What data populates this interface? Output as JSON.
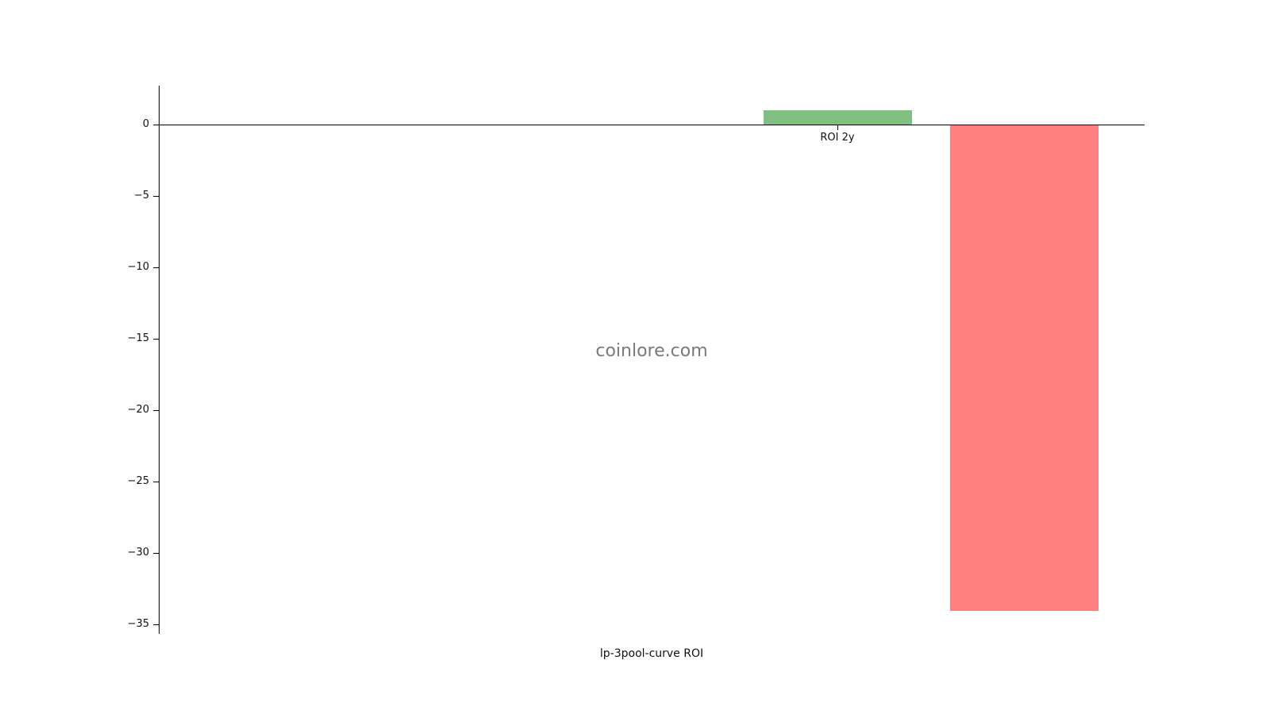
{
  "chart_data": {
    "type": "bar",
    "title": "lp-3pool-curve ROI",
    "watermark": "coinlore.com",
    "bars": [
      {
        "label": "ROI 2y",
        "show_label": true,
        "value": 1.0,
        "color": "#80bf80"
      },
      {
        "label": "",
        "show_label": false,
        "value": -34.0,
        "color": "#ff8080"
      }
    ],
    "yticks": [
      {
        "label": "0",
        "value": 0
      },
      {
        "label": "−5",
        "value": -5
      },
      {
        "label": "−10",
        "value": -10
      },
      {
        "label": "−15",
        "value": -15
      },
      {
        "label": "−20",
        "value": -20
      },
      {
        "label": "−25",
        "value": -25
      },
      {
        "label": "−30",
        "value": -30
      },
      {
        "label": "−35",
        "value": -35
      }
    ],
    "ylim": [
      -35.75,
      2.75
    ],
    "grid": false,
    "legend": "none",
    "colors": {
      "positive": "#80bf80",
      "negative": "#ff8080",
      "axis": "#000000",
      "watermark": "#7a7a7a"
    }
  }
}
